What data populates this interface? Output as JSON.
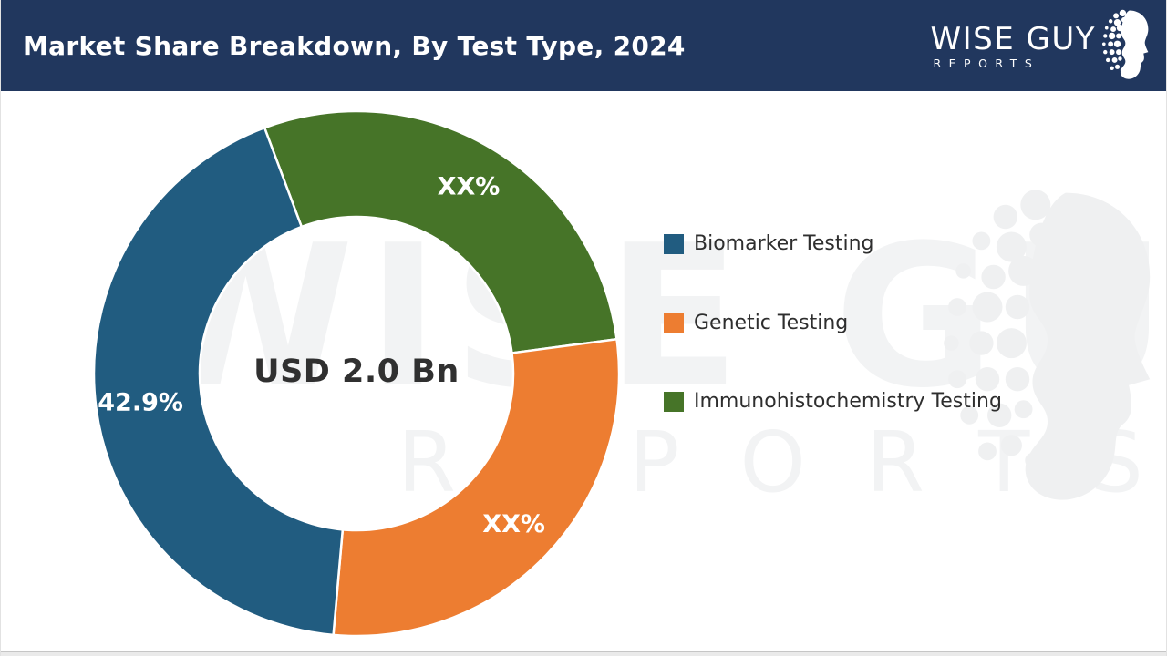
{
  "header": {
    "title": "Market Share Breakdown, By Test Type, 2024",
    "background_color": "#21375E",
    "logo": {
      "line1": "WISE GUY",
      "line2": "REPORTS"
    }
  },
  "chart_data": {
    "type": "pie",
    "subtype": "donut",
    "title": "Market Share Breakdown, By Test Type, 2024",
    "center_label": "USD 2.0 Bn",
    "unit": "%",
    "start_angle_deg": -20.5,
    "segments": [
      {
        "id": "immunohistochemistry-testing",
        "label": "Immunohistochemistry Testing",
        "value": 28.6,
        "display_label": "XX%",
        "color": "#467428"
      },
      {
        "id": "genetic-testing",
        "label": "Genetic Testing",
        "value": 28.5,
        "display_label": "XX%",
        "color": "#ED7D31"
      },
      {
        "id": "biomarker-testing",
        "label": "Biomarker Testing",
        "value": 42.9,
        "display_label": "42.9%",
        "color": "#215C80"
      }
    ],
    "legend_position": "right"
  },
  "legend": {
    "items": [
      {
        "label": "Biomarker Testing",
        "color": "#215C80"
      },
      {
        "label": "Genetic Testing",
        "color": "#ED7D31"
      },
      {
        "label": "Immunohistochemistry Testing",
        "color": "#467428"
      }
    ]
  },
  "watermark": {
    "line1": "WISE GUY",
    "line2": "REPORTS"
  }
}
